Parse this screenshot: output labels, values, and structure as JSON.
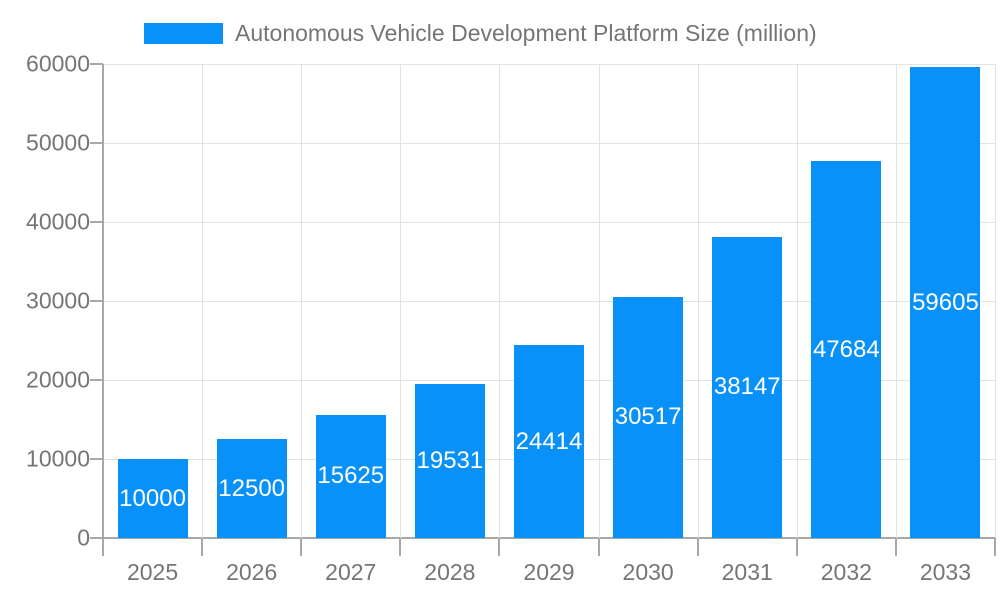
{
  "legend": {
    "label": "Autonomous Vehicle Development Platform Size (million)"
  },
  "chart_data": {
    "type": "bar",
    "title": "Autonomous Vehicle Development Platform Size (million)",
    "categories": [
      "2025",
      "2026",
      "2027",
      "2028",
      "2029",
      "2030",
      "2031",
      "2032",
      "2033"
    ],
    "series": [
      {
        "name": "Autonomous Vehicle Development Platform Size (million)",
        "values": [
          10000,
          12500,
          15625,
          19531,
          24414,
          30517,
          38147,
          47684,
          59605
        ]
      }
    ],
    "value_labels_shown": true,
    "xlabel": "",
    "ylabel": "",
    "ylim": [
      0,
      60000
    ],
    "yticks": [
      0,
      10000,
      20000,
      30000,
      40000,
      50000,
      60000
    ],
    "grid": true,
    "legend_position": "top"
  },
  "colors": {
    "bar": "#0891F8",
    "value_label": "#ffffff",
    "axis_line": "#a8a8a8",
    "gridline": "#e3e3e3",
    "axis_text": "#757575",
    "legend_text": "#757575",
    "background": "#ffffff"
  }
}
